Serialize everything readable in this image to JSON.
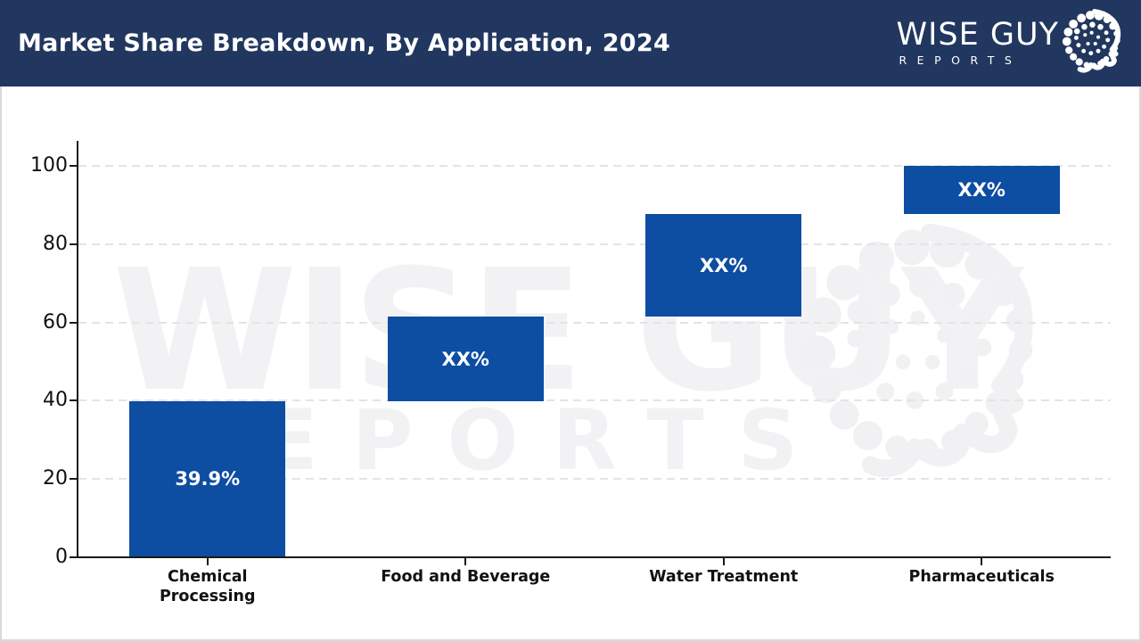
{
  "header": {
    "title": "Market Share Breakdown, By Application, 2024",
    "bg_color": "#21375f",
    "logo": {
      "line1": "WISE GUY",
      "line2": "REPORTS"
    }
  },
  "watermark": {
    "line1": "WISE GUY",
    "line2": "REPORTS"
  },
  "frame_color": "#d9d9d9",
  "chart_data": {
    "type": "bar",
    "subtype": "waterfall",
    "title": "Market Share Breakdown, By Application, 2024",
    "categories": [
      "Chemical Processing",
      "Food and Beverage",
      "Water Treatment",
      "Pharmaceuticals"
    ],
    "categories_display": [
      "Chemical\nProcessing",
      "Food and Beverage",
      "Water Treatment",
      "Pharmaceuticals"
    ],
    "segments": [
      {
        "category": "Chemical Processing",
        "start": 0,
        "end": 39.9,
        "label": "39.9%"
      },
      {
        "category": "Food and Beverage",
        "start": 39.9,
        "end": 61.4,
        "label": "XX%"
      },
      {
        "category": "Water Treatment",
        "start": 61.4,
        "end": 87.7,
        "label": "XX%"
      },
      {
        "category": "Pharmaceuticals",
        "start": 87.7,
        "end": 100,
        "label": "XX%"
      }
    ],
    "xlabel": "",
    "ylabel": "",
    "ylim": [
      0,
      100
    ],
    "yticks": [
      0,
      20,
      40,
      60,
      80,
      100
    ],
    "grid": "horizontal-dashed",
    "legend": "none",
    "bar_color": "#0d4da2",
    "bar_label_color": "#ffffff"
  }
}
